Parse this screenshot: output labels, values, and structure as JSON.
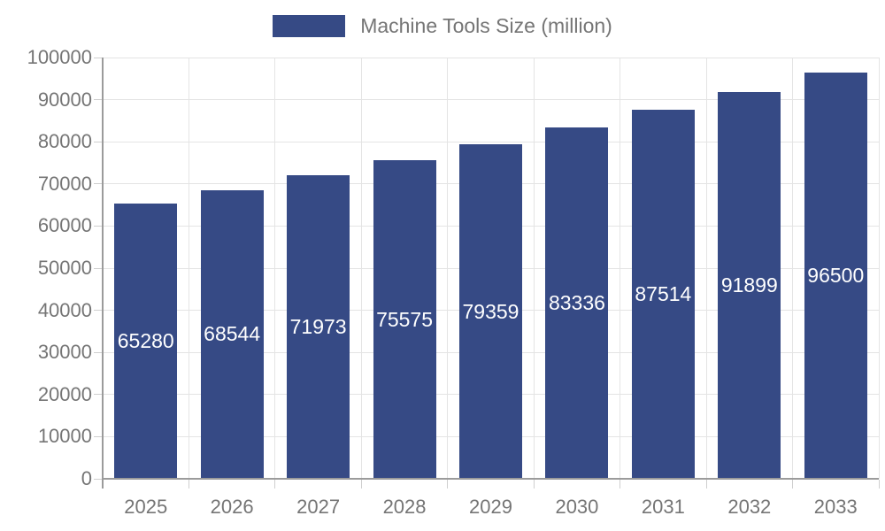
{
  "legend": {
    "label": "Machine Tools Size (million)"
  },
  "chart_data": {
    "type": "bar",
    "title": "Machine Tools Size (million)",
    "categories": [
      "2025",
      "2026",
      "2027",
      "2028",
      "2029",
      "2030",
      "2031",
      "2032",
      "2033"
    ],
    "values": [
      65280,
      68544,
      71973,
      75575,
      79359,
      83336,
      87514,
      91899,
      96500
    ],
    "value_labels": [
      "65280",
      "68544",
      "71973",
      "75575",
      "79359",
      "83336",
      "87514",
      "91899",
      "96500"
    ],
    "xlabel": "",
    "ylabel": "",
    "ylim": [
      0,
      100000
    ],
    "yticks": [
      0,
      10000,
      20000,
      30000,
      40000,
      50000,
      60000,
      70000,
      80000,
      90000,
      100000
    ],
    "ytick_labels": [
      "0",
      "10000",
      "20000",
      "30000",
      "40000",
      "50000",
      "60000",
      "70000",
      "80000",
      "90000",
      "100000"
    ],
    "grid": true,
    "legend_position": "top-center",
    "colors": {
      "bar": "#364a85",
      "value_label": "#ffffff",
      "axis_text": "#757575",
      "grid_line": "#e4e4e4",
      "tick_line": "#cfcfcf",
      "axis_line": "#9b9b9b"
    }
  }
}
